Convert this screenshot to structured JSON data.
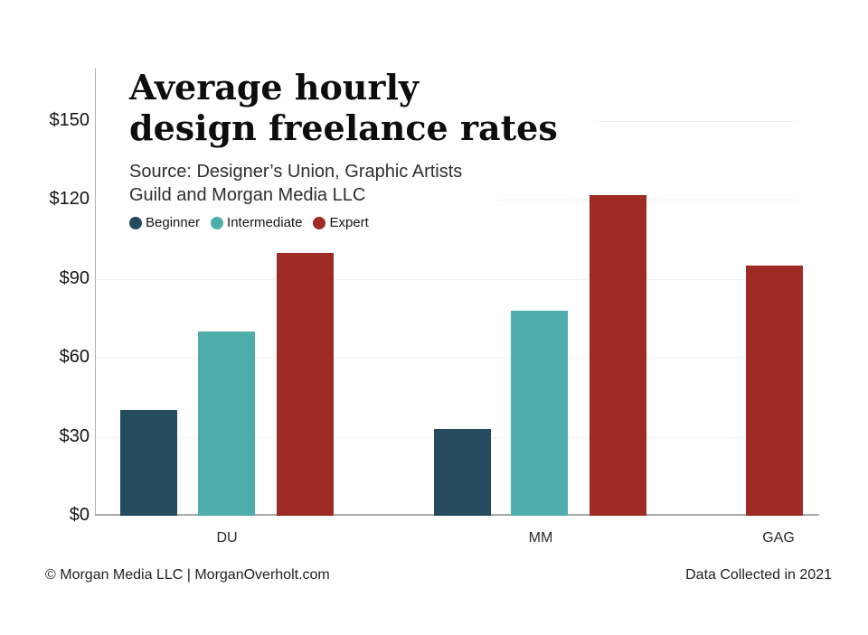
{
  "header": {
    "title_line1": "Average hourly",
    "title_line2": "design freelance rates",
    "subtitle_line1": "Source: Designer’s Union, Graphic Artists",
    "subtitle_line2": "Guild and Morgan Media LLC"
  },
  "footer": {
    "left": "© Morgan Media LLC | MorganOverholt.com",
    "right": "Data Collected in 2021"
  },
  "chart_data": {
    "type": "bar",
    "title": "Average hourly design freelance rates",
    "subtitle": "Source: Designer’s Union, Graphic Artists Guild and Morgan Media LLC",
    "categories": [
      "DU",
      "MM",
      "GAG"
    ],
    "series": [
      {
        "name": "Beginner",
        "color": "#254B5E",
        "values": [
          40,
          33,
          null
        ]
      },
      {
        "name": "Intermediate",
        "color": "#4FADAB",
        "values": [
          70,
          78,
          null
        ]
      },
      {
        "name": "Expert",
        "color": "#9E2C25",
        "values": [
          100,
          122,
          95
        ]
      }
    ],
    "xlabel": "",
    "ylabel": "",
    "ylim": [
      0,
      150
    ],
    "y_ticks": [
      {
        "value": 0,
        "label": "$0"
      },
      {
        "value": 30,
        "label": "$30"
      },
      {
        "value": 60,
        "label": "$60"
      },
      {
        "value": 90,
        "label": "$90"
      },
      {
        "value": 120,
        "label": "$120"
      },
      {
        "value": 150,
        "label": "$150"
      }
    ],
    "grid": "horizontal",
    "legend_position": "top-left",
    "currency": "USD"
  }
}
